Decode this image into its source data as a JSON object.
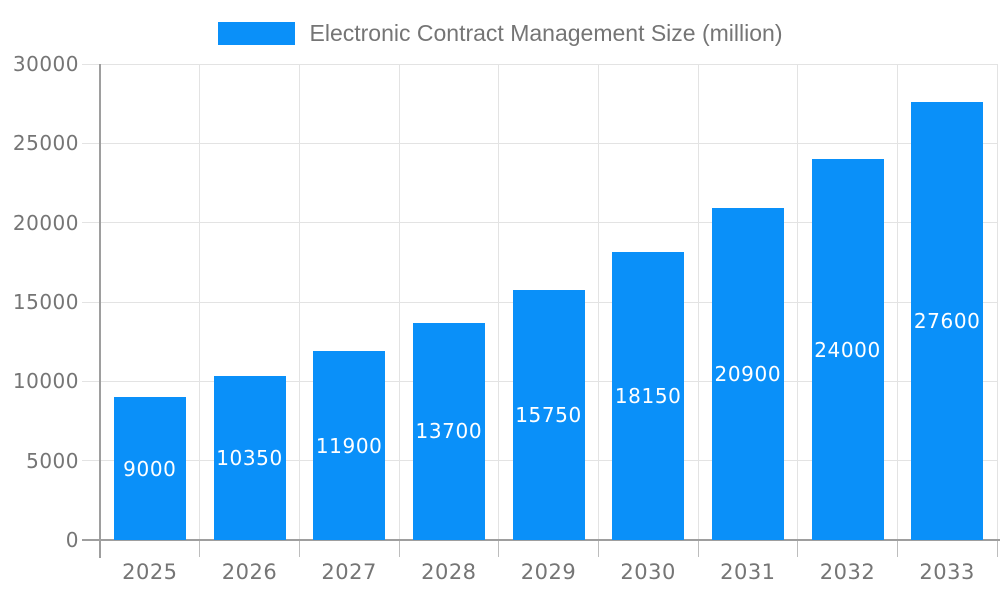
{
  "chart_data": {
    "type": "bar",
    "title": "Electronic Contract Management Size (million)",
    "legend_label": "Electronic Contract Management Size (million)",
    "legend_position": "top",
    "categories": [
      "2025",
      "2026",
      "2027",
      "2028",
      "2029",
      "2030",
      "2031",
      "2032",
      "2033"
    ],
    "values": [
      9000,
      10350,
      11900,
      13700,
      15750,
      18150,
      20900,
      24000,
      27600
    ],
    "xlabel": "",
    "ylabel": "",
    "ylim": [
      0,
      30000
    ],
    "ytick_step": 5000,
    "yticks": [
      0,
      5000,
      10000,
      15000,
      20000,
      25000,
      30000
    ],
    "grid": true,
    "bar_labels": "inside-center"
  },
  "colors": {
    "bar": "#0a90f9",
    "bar_label": "#ffffff",
    "axis_text": "#757575",
    "title_text": "#757575",
    "grid_line": "#e3e3e3",
    "tick_line": "#bdbdbd",
    "axis_line": "#9e9e9e",
    "background": "#ffffff"
  }
}
